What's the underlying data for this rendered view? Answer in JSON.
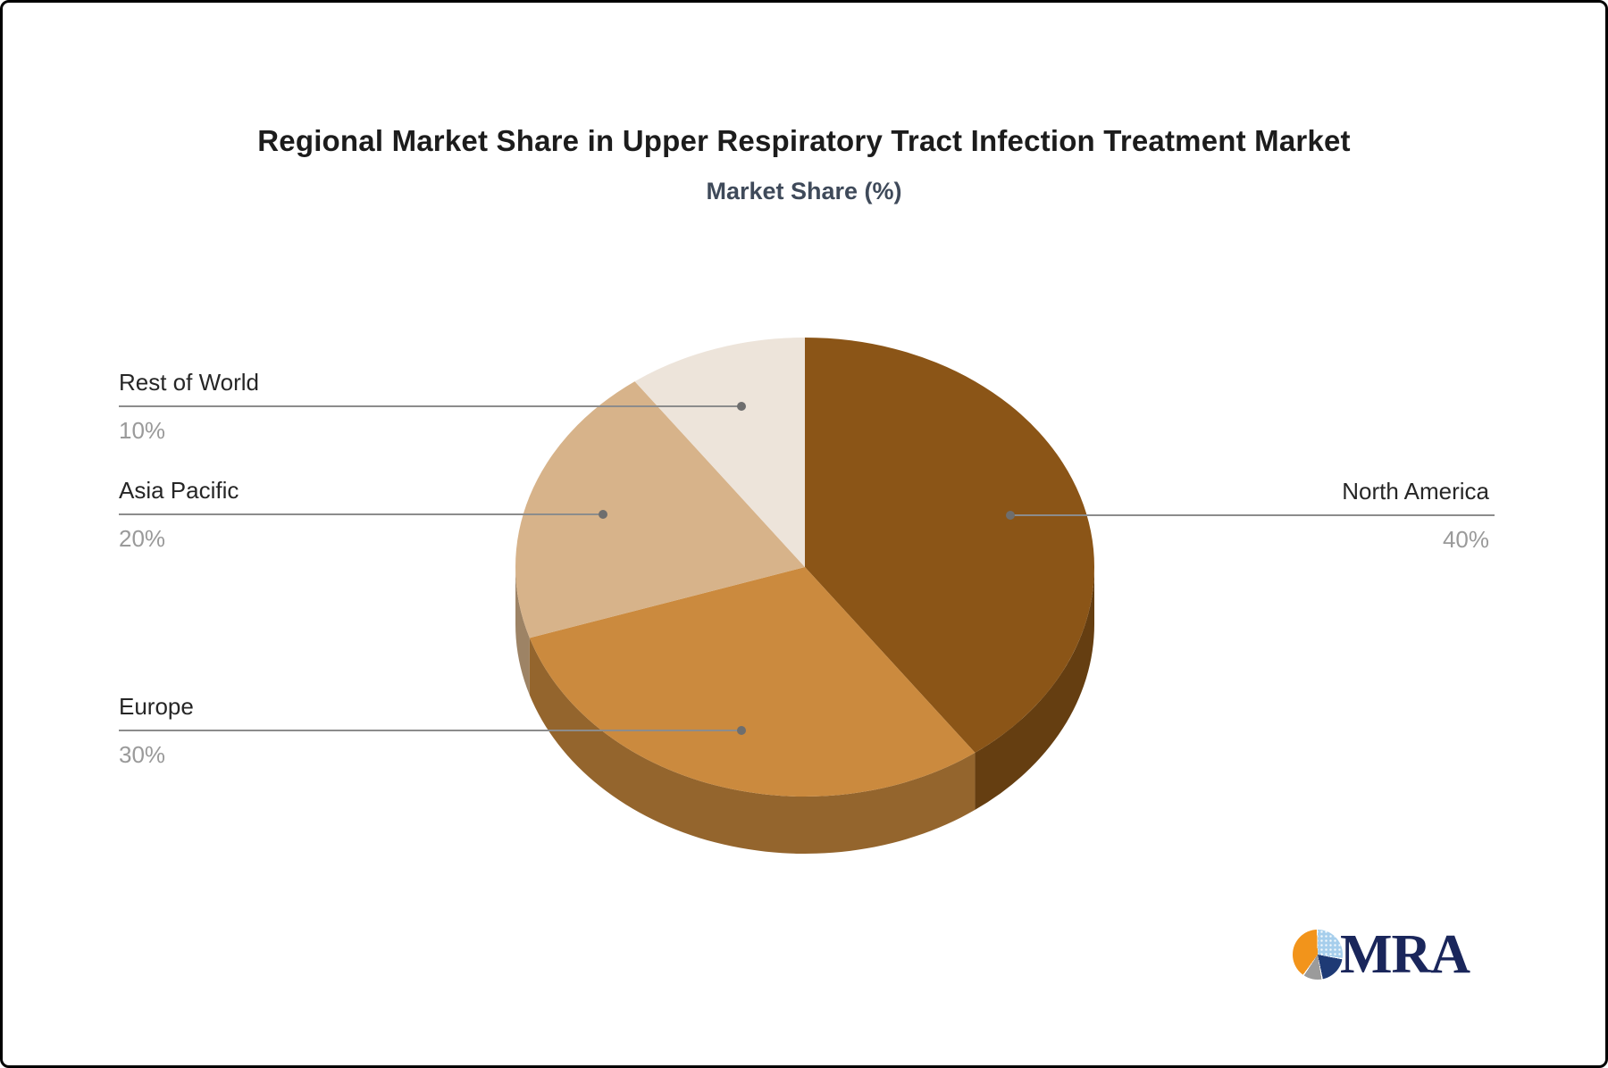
{
  "title": "Regional Market Share in Upper Respiratory Tract Infection Treatment Market",
  "subtitle": "Market Share (%)",
  "chart_data": {
    "type": "pie",
    "style": "3d",
    "direction": "clockwise",
    "start_angle_deg": 0,
    "title": "Regional Market Share in Upper Respiratory Tract Infection Treatment Market",
    "subtitle": "Market Share (%)",
    "labels": [
      "North America",
      "Europe",
      "Asia Pacific",
      "Rest of World"
    ],
    "values": [
      40,
      30,
      20,
      10
    ],
    "value_labels": [
      "40%",
      "30%",
      "20%",
      "10%"
    ],
    "unit": "%",
    "colors": [
      "#8B5517",
      "#CB8A3E",
      "#D7B38A",
      "#EDE4DA"
    ],
    "legend_position": "callout-labels"
  },
  "style_colors": {
    "background": "#ffffff",
    "title_color": "#1c1c1c",
    "subtitle_color": "#3f4a5a",
    "callout_name_color": "#262626",
    "callout_value_color": "#9a9a9a",
    "leader_line_color": "#8c8c8c",
    "leader_dot_color": "#6e6e6e"
  },
  "logo": {
    "text": "MRA",
    "text_color": "#1a265b",
    "pie_orange": "#F2941B",
    "pie_light_blue": "#A6CEEC",
    "pie_navy": "#1E3A75",
    "pie_gray": "#9B9B9B"
  }
}
